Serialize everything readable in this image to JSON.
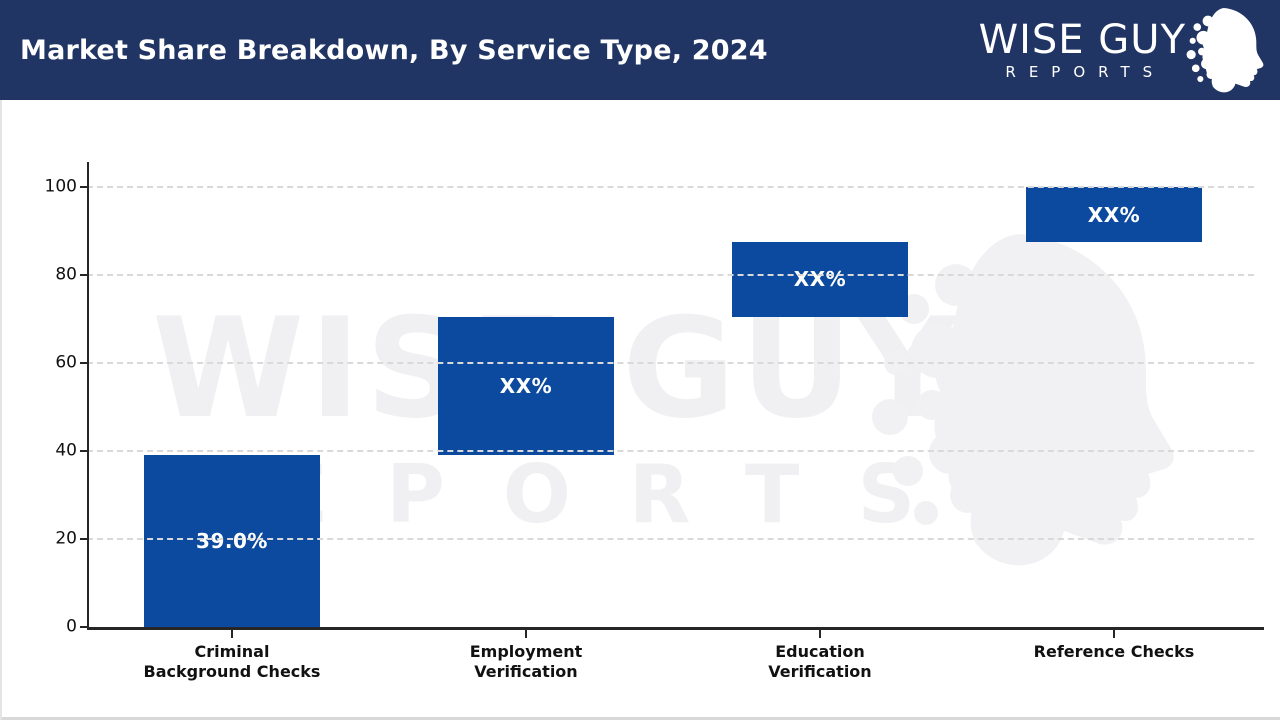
{
  "header": {
    "title": "Market Share Breakdown, By Service Type, 2024",
    "logo": {
      "line1": "WISE GUY",
      "line2": "REPORTS",
      "icon": "dotted-head-profile"
    }
  },
  "watermark": {
    "line1": "WISE GUY",
    "line2": "REPORTS",
    "icon": "dotted-head-profile"
  },
  "colors": {
    "header_bg": "#213564",
    "bar_fill": "#0b4a9e",
    "bar_label": "#ffffff",
    "grid": "#d9d9d9",
    "axis": "#262626",
    "watermark": "#f0f0f3"
  },
  "chart_data": {
    "type": "bar",
    "subtype": "waterfall-floating-bars",
    "title": "Market Share Breakdown, By Service Type, 2024",
    "xlabel": "",
    "ylabel": "",
    "ylim": [
      0,
      105
    ],
    "yticks": [
      0,
      20,
      40,
      60,
      80,
      100
    ],
    "grid": "horizontal-dashed",
    "legend": "none",
    "categories": [
      [
        "Criminal",
        "Background Checks"
      ],
      [
        "Employment",
        "Verification"
      ],
      [
        "Education",
        "Verification"
      ],
      [
        "Reference Checks"
      ]
    ],
    "series": [
      {
        "name": "Market Share",
        "segments": [
          {
            "category": "Criminal Background Checks",
            "start": 0,
            "end": 39,
            "label": "39.0%"
          },
          {
            "category": "Employment Verification",
            "start": 39,
            "end": 70.5,
            "label": "XX%"
          },
          {
            "category": "Education Verification",
            "start": 70.5,
            "end": 87.5,
            "label": "XX%"
          },
          {
            "category": "Reference Checks",
            "start": 87.5,
            "end": 100,
            "label": "XX%"
          }
        ]
      }
    ]
  }
}
